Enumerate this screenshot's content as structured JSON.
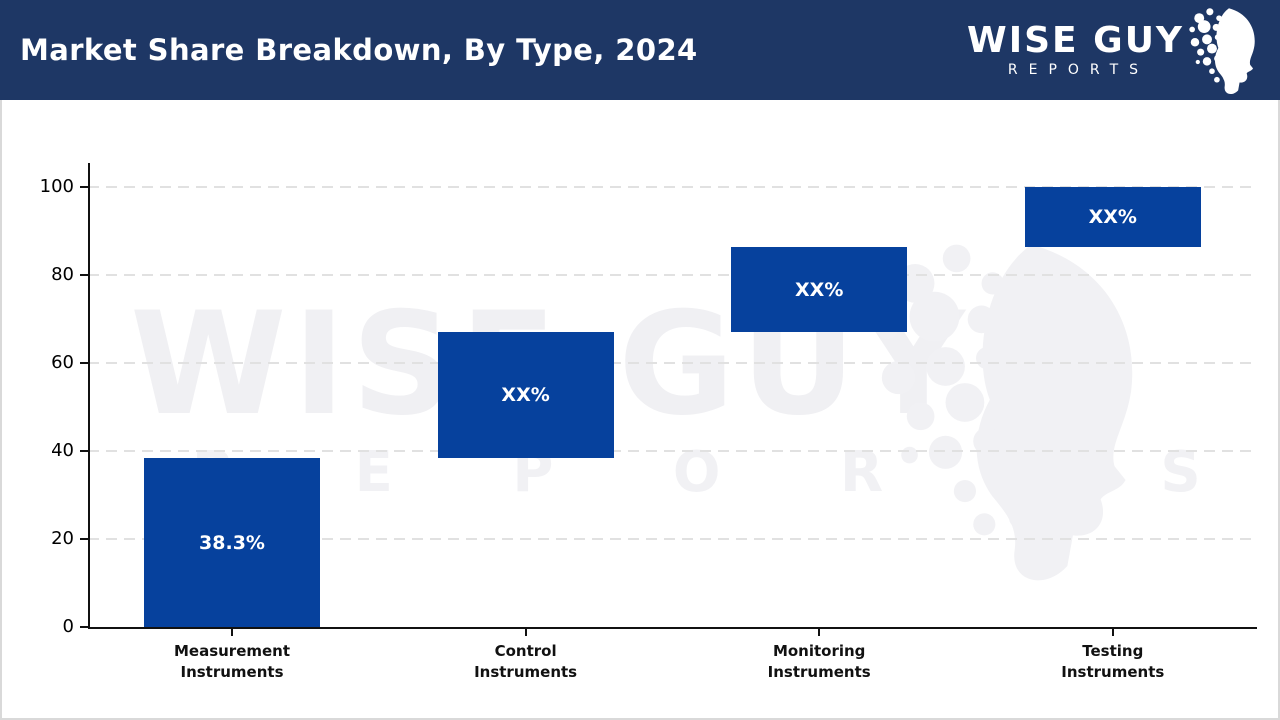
{
  "header": {
    "title": "Market Share Breakdown, By Type, 2024",
    "logo": {
      "line1": "WISE GUY",
      "line2": "REPORTS"
    }
  },
  "watermark": {
    "line1": "WISE GUY",
    "line2": "R E P O R T S"
  },
  "colors": {
    "header_bg": "#1e3765",
    "bar": "#06419d",
    "grid": "#e1e1e1",
    "axis": "#111111",
    "bar_label": "#ffffff",
    "watermark": "#f0f0f3"
  },
  "chart_data": {
    "type": "bar",
    "variant": "waterfall",
    "title": "Market Share Breakdown, By Type, 2024",
    "categories": [
      "Measurement\nInstruments",
      "Control\nInstruments",
      "Monitoring\nInstruments",
      "Testing\nInstruments"
    ],
    "segments": [
      {
        "category": "Measurement Instruments",
        "start": 0,
        "end": 38.3,
        "label": "38.3%"
      },
      {
        "category": "Control Instruments",
        "start": 38.3,
        "end": 67,
        "label": "XX%"
      },
      {
        "category": "Monitoring Instruments",
        "start": 67,
        "end": 86.3,
        "label": "XX%"
      },
      {
        "category": "Testing Instruments",
        "start": 86.3,
        "end": 100,
        "label": "XX%"
      }
    ],
    "y_ticks": [
      0,
      20,
      40,
      60,
      80,
      100
    ],
    "ylim": [
      0,
      105.5
    ],
    "xlabel": "",
    "ylabel": "",
    "grid": "horizontal-dashed",
    "legend": "none"
  }
}
